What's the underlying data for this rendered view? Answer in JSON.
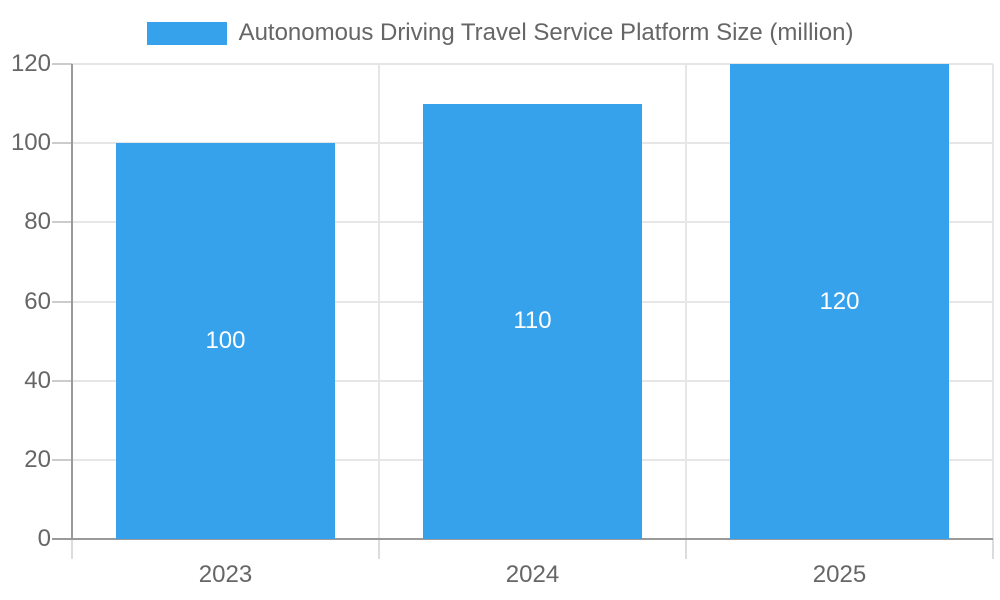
{
  "legend": {
    "label": "Autonomous Driving Travel Service Platform Size (million)"
  },
  "chart_data": {
    "type": "bar",
    "categories": [
      "2023",
      "2024",
      "2025"
    ],
    "series": [
      {
        "name": "Autonomous Driving Travel Service Platform Size (million)",
        "values": [
          100,
          110,
          120
        ]
      }
    ],
    "data_labels": [
      "100",
      "110",
      "120"
    ],
    "title": "",
    "xlabel": "",
    "ylabel": "",
    "ylim": [
      0,
      120
    ],
    "yticks": [
      0,
      20,
      40,
      60,
      80,
      100,
      120
    ],
    "grid": true,
    "legend_position": "top-center",
    "bar_color": "#36A2EB",
    "bar_width_ratio": 0.716,
    "label_color_on_bar": "#FFFFFF"
  },
  "colors": {
    "bar": "#36A2EB",
    "axis_text": "#666666",
    "grid_line": "#E6E6E6",
    "axis_line": "#9A9A9A",
    "tick_mark": "#CCCCCC",
    "background": "#FFFFFF"
  }
}
